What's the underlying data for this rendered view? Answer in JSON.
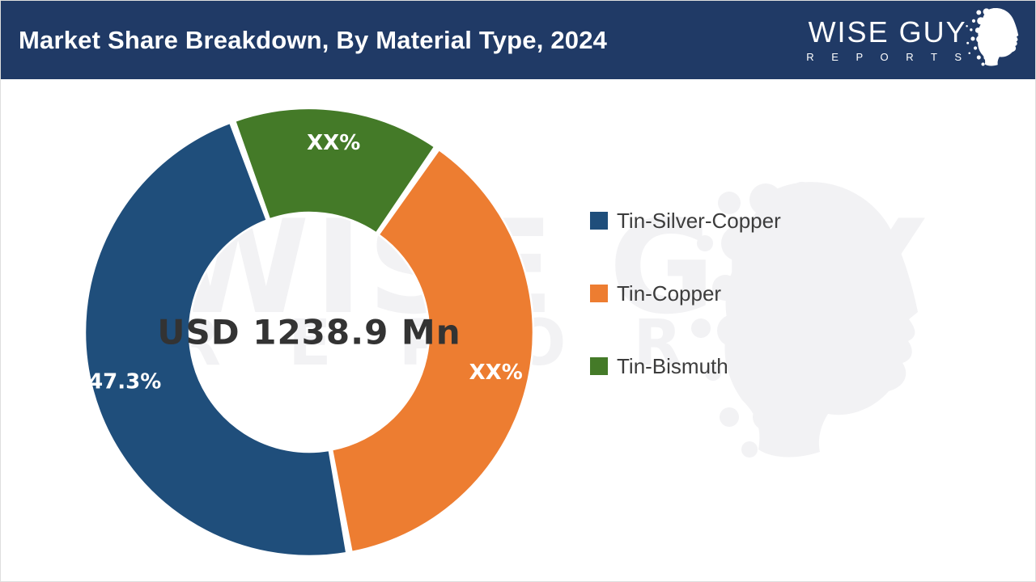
{
  "header": {
    "title": "Market Share Breakdown, By Material Type, 2024",
    "background_color": "#203a66",
    "logo": {
      "brand": "WISE GUY",
      "sub": "R E P O R T S"
    }
  },
  "watermark": {
    "line1": "WISE GUY",
    "line2": "R E P O R T S"
  },
  "chart_data": {
    "type": "pie",
    "subtype": "donut",
    "title": "Market Share Breakdown, By Material Type, 2024",
    "center_label": "USD 1238.9 Mn",
    "start_angle_deg": -20,
    "direction": "counterclockwise",
    "legend_position": "right",
    "slices": [
      {
        "label": "Tin-Silver-Copper",
        "value_pct": 47.3,
        "display_label": "47.3%",
        "color": "#1f4e7b"
      },
      {
        "label": "Tin-Copper",
        "value_pct": 37.5,
        "display_label": "XX%",
        "color": "#ed7d31"
      },
      {
        "label": "Tin-Bismuth",
        "value_pct": 15.2,
        "display_label": "XX%",
        "color": "#447a28"
      }
    ]
  }
}
